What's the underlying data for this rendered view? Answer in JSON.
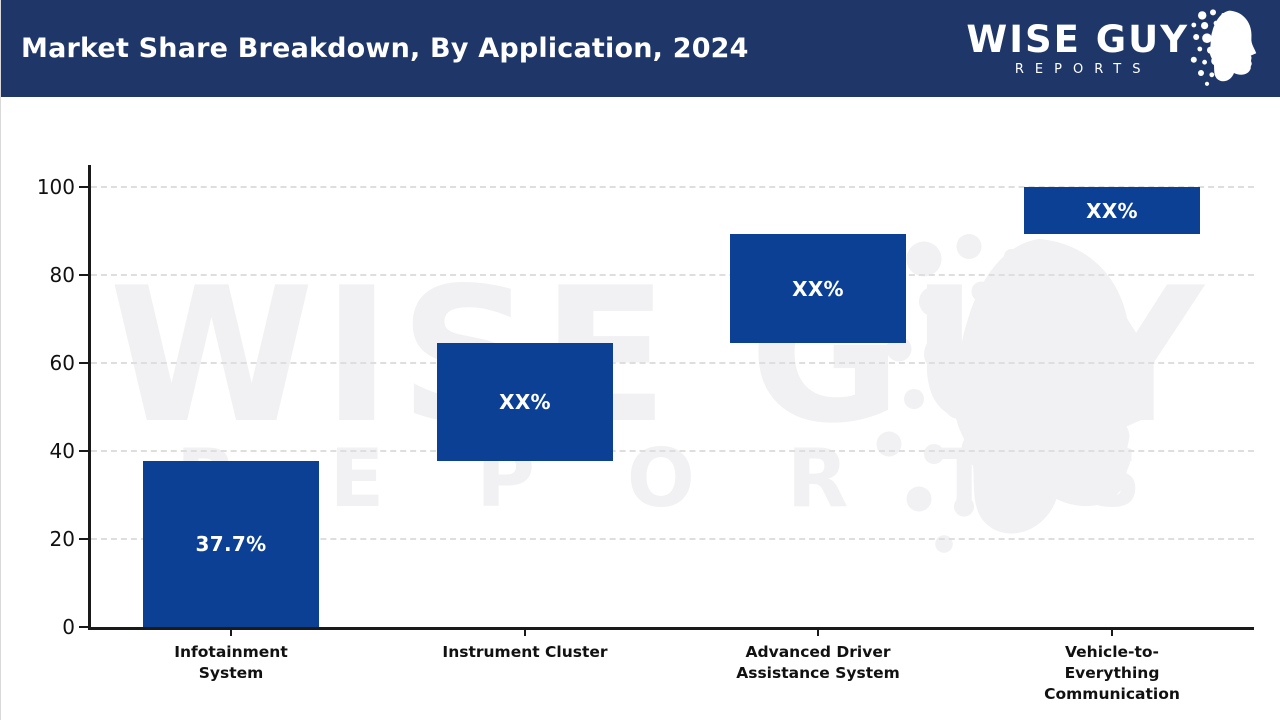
{
  "header": {
    "title": "Market Share Breakdown, By Application, 2024",
    "background": "#1f3768",
    "logo": {
      "line1": "WISE GUY",
      "line2": "REPORTS"
    }
  },
  "watermark": {
    "line1": "WISE GUY",
    "line2": "REPORTS"
  },
  "chart_data": {
    "type": "bar",
    "subtype": "waterfall",
    "title": "Market Share Breakdown, By Application, 2024",
    "categories": [
      "Infotainment System",
      "Instrument Cluster",
      "Advanced Driver Assistance System",
      "Vehicle-to-Everything Communication"
    ],
    "category_label_lines": [
      [
        "Infotainment",
        "System"
      ],
      [
        "Instrument Cluster"
      ],
      [
        "Advanced Driver",
        "Assistance System"
      ],
      [
        "Vehicle-to-",
        "Everything",
        "Communication"
      ]
    ],
    "values": [
      37.7,
      26.8,
      24.8,
      10.7
    ],
    "segment_start": [
      0,
      37.7,
      64.5,
      89.3
    ],
    "segment_end": [
      37.7,
      64.5,
      89.3,
      100
    ],
    "data_labels": [
      "37.7%",
      "XX%",
      "XX%",
      "XX%"
    ],
    "yticks": [
      0,
      20,
      40,
      60,
      80,
      100
    ],
    "ylim": [
      0,
      100
    ],
    "xlabel": "",
    "ylabel": "",
    "grid": "horizontal-dashed",
    "legend": "none",
    "bar_color": "#0c4094",
    "bar_label_color": "#ffffff",
    "axis_color": "#1a1a1a",
    "gridline_color": "#dedede"
  }
}
